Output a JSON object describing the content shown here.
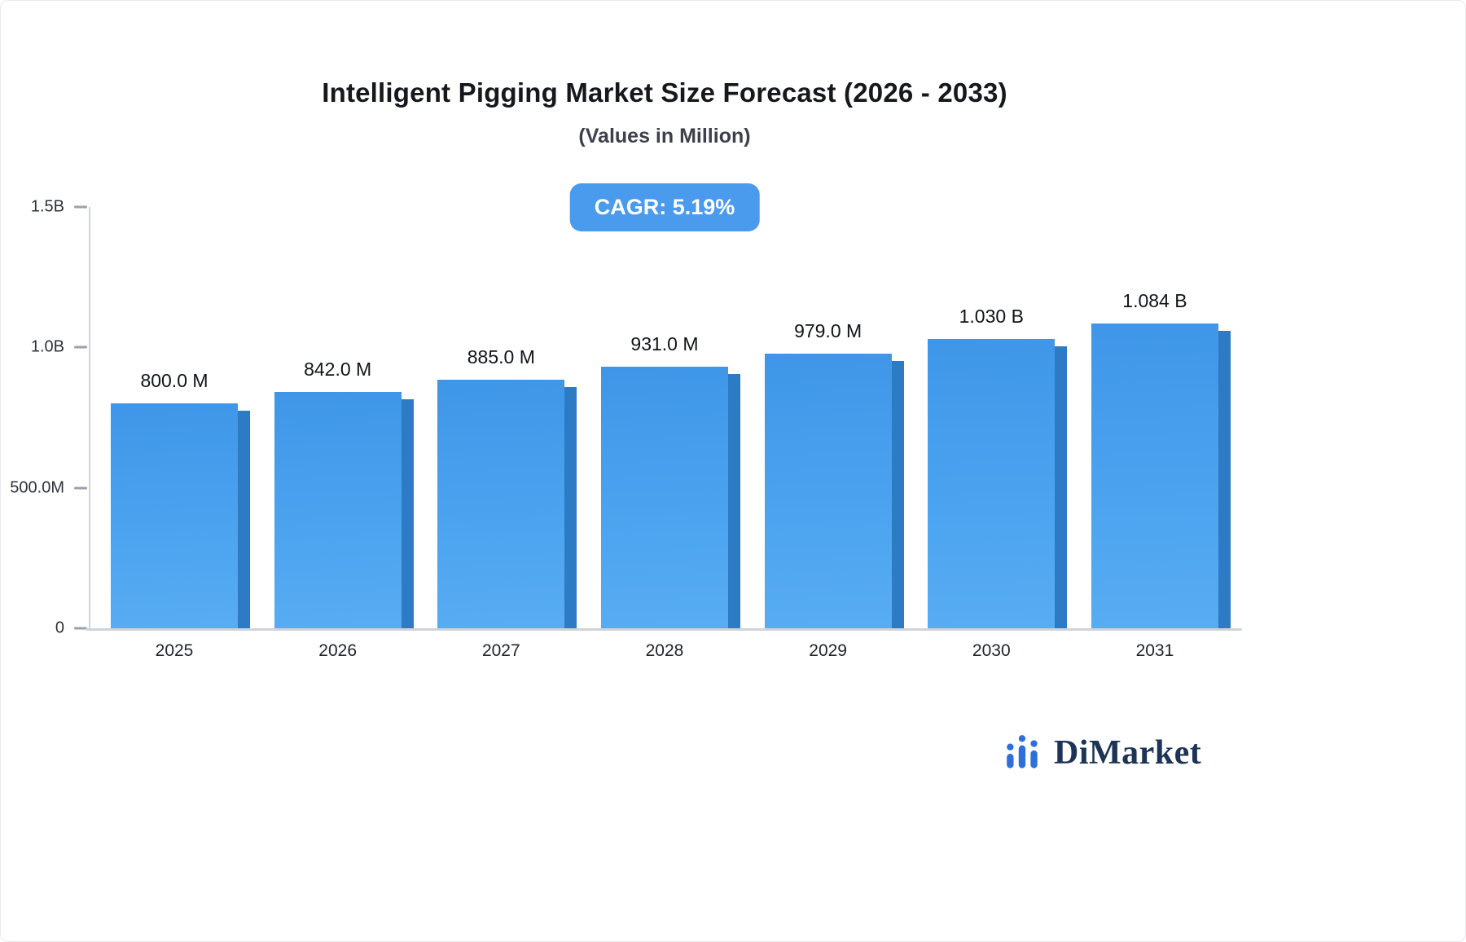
{
  "title": "Intelligent Pigging Market Size Forecast (2026 - 2033)",
  "subtitle": "(Values in Million)",
  "cagr_badge": "CAGR: 5.19%",
  "brand": {
    "name": "DiMarket",
    "icon": "dimarket-logo-icon"
  },
  "colors": {
    "badge_bg": "#4a9bee",
    "bar_face_top": "#3f96e8",
    "bar_face_mid": "#4ba3ef",
    "bar_face_bottom": "#58acf2",
    "bar_side": "#2d7ac5",
    "axis_line": "#cfd4da",
    "tick": "#9aa1ab",
    "text_dark": "#16181d",
    "brand_blue": "#2e6fdb",
    "brand_text": "#1d3457"
  },
  "chart_data": {
    "type": "bar",
    "categories": [
      "2025",
      "2026",
      "2027",
      "2028",
      "2029",
      "2030",
      "2031"
    ],
    "values": [
      800,
      842,
      885,
      931,
      979,
      1030,
      1084
    ],
    "value_labels": [
      "800.0 M",
      "842.0 M",
      "885.0 M",
      "931.0 M",
      "979.0 M",
      "1.030 B",
      "1.084 B"
    ],
    "unit": "Million",
    "title": "Intelligent Pigging Market Size Forecast (2026 - 2033)",
    "xlabel": "",
    "ylabel": "",
    "ylim": [
      0,
      1500
    ],
    "yticks": [
      {
        "value": 0,
        "label": "0"
      },
      {
        "value": 500,
        "label": "500.0M"
      },
      {
        "value": 1000,
        "label": "1.0B"
      },
      {
        "value": 1500,
        "label": "1.5B"
      }
    ],
    "grid": false,
    "legend": false
  }
}
